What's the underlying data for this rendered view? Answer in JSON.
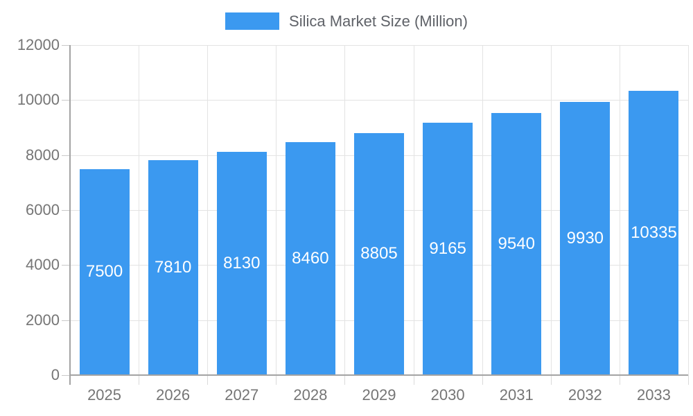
{
  "legend": {
    "position": "top-center",
    "items": [
      {
        "label": "Silica Market Size (Million)",
        "color": "#3B99F0"
      }
    ]
  },
  "colors": {
    "background": "#FFFFFF",
    "bar": "#3B99F0",
    "bar_label_text": "#FFFFFF",
    "grid_line": "#E3E3E3",
    "axis_line": "#A3A3A3",
    "y_tick_mark": "#C9C9C9",
    "x_tick_mark": "#DADADA",
    "axis_text": "#757575",
    "legend_text": "#5F6268"
  },
  "chart_data": {
    "type": "bar",
    "title": "Silica Market Size (Million)",
    "categories": [
      "2025",
      "2026",
      "2027",
      "2028",
      "2029",
      "2030",
      "2031",
      "2032",
      "2033"
    ],
    "series": [
      {
        "name": "Silica Market Size (Million)",
        "color": "#3B99F0",
        "values": [
          7500,
          7810,
          8130,
          8460,
          8805,
          9165,
          9540,
          9930,
          10335
        ]
      }
    ],
    "data_labels": {
      "visible": true,
      "position": "inside-middle",
      "color": "#FFFFFF",
      "values": [
        "7500",
        "7810",
        "8130",
        "8460",
        "8805",
        "9165",
        "9540",
        "9930",
        "10335"
      ]
    },
    "xlabel": "",
    "ylabel": "",
    "ylim": [
      0,
      12000
    ],
    "yticks": [
      0,
      2000,
      4000,
      6000,
      8000,
      10000,
      12000
    ],
    "ytick_labels": [
      "0",
      "2000",
      "4000",
      "6000",
      "8000",
      "10000",
      "12000"
    ],
    "grid": true,
    "legend_position": "top"
  }
}
